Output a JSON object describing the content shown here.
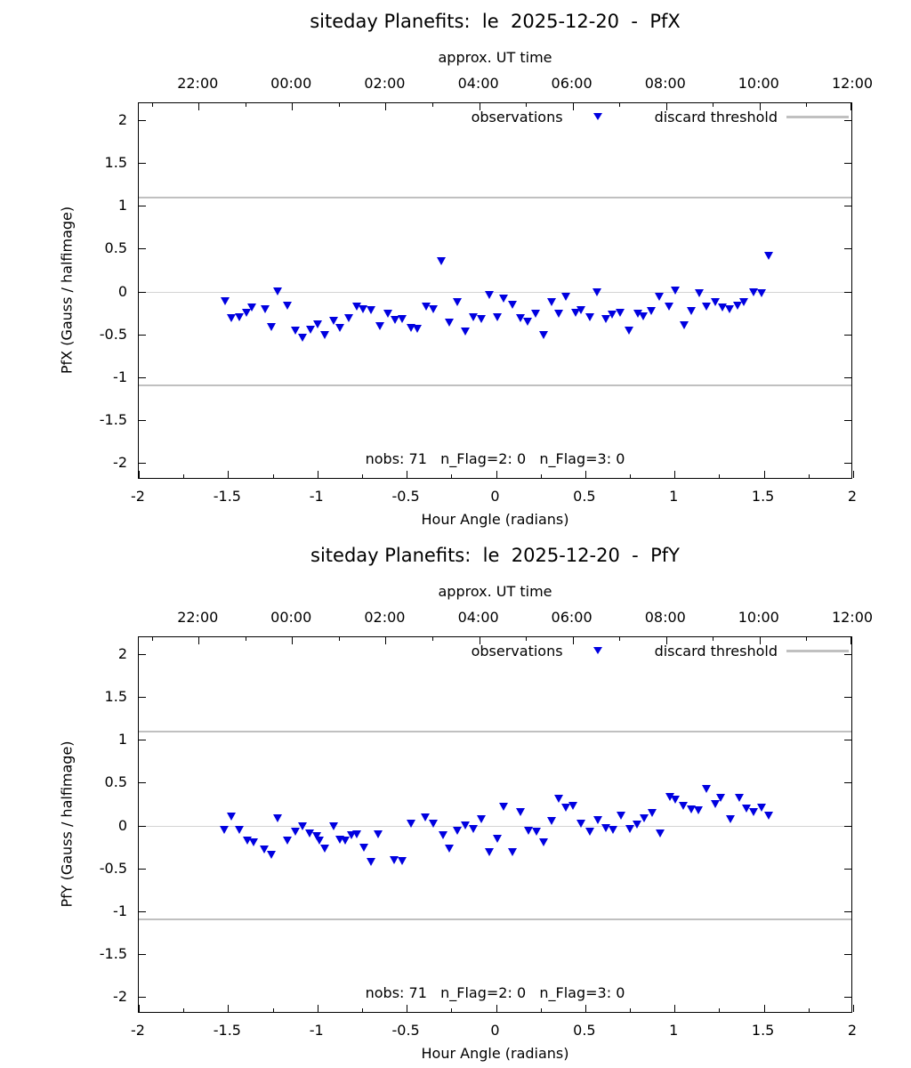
{
  "colors": {
    "marker": "#0000e0",
    "threshold_line": "#c0c0c0",
    "zero_line": "#d4d4d4",
    "axis": "#000000",
    "background": "#ffffff"
  },
  "chart_data": [
    {
      "type": "scatter",
      "title": "siteday Planefits:  le  2025-12-20  -  PfX",
      "x2label": "approx. UT time",
      "xlabel": "Hour Angle (radians)",
      "ylabel": "PfX (Gauss / halfimage)",
      "stats": "nobs: 71   n_Flag=2: 0   n_Flag=3: 0",
      "legend": {
        "observations": "observations",
        "threshold": "discard threshold"
      },
      "xlim": [
        -2,
        2
      ],
      "ylim": [
        -2.2,
        2.2
      ],
      "grid": false,
      "zero_line": 0,
      "discard_thresholds": [
        1.1,
        -1.1
      ],
      "x_ticks": [
        {
          "v": -2,
          "label": "-2"
        },
        {
          "v": -1.5,
          "label": "-1.5"
        },
        {
          "v": -1,
          "label": "-1"
        },
        {
          "v": -0.5,
          "label": "-0.5"
        },
        {
          "v": 0,
          "label": "0"
        },
        {
          "v": 0.5,
          "label": "0.5"
        },
        {
          "v": 1,
          "label": "1"
        },
        {
          "v": 1.5,
          "label": "1.5"
        },
        {
          "v": 2,
          "label": "2"
        }
      ],
      "x_minor_ticks": [
        -1.75,
        -1.25,
        -0.75,
        -0.25,
        0.25,
        0.75,
        1.25,
        1.75
      ],
      "x2_ticks": [
        {
          "v": -1.665,
          "label": "22:00"
        },
        {
          "v": -1.142,
          "label": "00:00"
        },
        {
          "v": -0.618,
          "label": "02:00"
        },
        {
          "v": -0.094,
          "label": "04:00"
        },
        {
          "v": 0.429,
          "label": "06:00"
        },
        {
          "v": 0.953,
          "label": "08:00"
        },
        {
          "v": 1.476,
          "label": "10:00"
        },
        {
          "v": 2.0,
          "label": "12:00"
        }
      ],
      "x2_minor_ticks": [
        -1.927,
        -1.403,
        -0.88,
        -0.356,
        0.167,
        0.691,
        1.215,
        1.738
      ],
      "y_ticks": [
        {
          "v": 2,
          "label": "2"
        },
        {
          "v": 1.5,
          "label": "1.5"
        },
        {
          "v": 1,
          "label": "1"
        },
        {
          "v": 0.5,
          "label": "0.5"
        },
        {
          "v": 0,
          "label": "0"
        },
        {
          "v": -0.5,
          "label": "-0.5"
        },
        {
          "v": -1,
          "label": "-1"
        },
        {
          "v": -1.5,
          "label": "-1.5"
        },
        {
          "v": -2,
          "label": "-2"
        }
      ],
      "series": [
        {
          "name": "observations",
          "marker": "triangle-down",
          "points": [
            [
              -1.515,
              -0.11
            ],
            [
              -1.477,
              -0.31
            ],
            [
              -1.436,
              -0.3
            ],
            [
              -1.394,
              -0.24
            ],
            [
              -1.364,
              -0.18
            ],
            [
              -1.29,
              -0.2
            ],
            [
              -1.256,
              -0.41
            ],
            [
              -1.219,
              0.01
            ],
            [
              -1.166,
              -0.16
            ],
            [
              -1.119,
              -0.45
            ],
            [
              -1.081,
              -0.54
            ],
            [
              -1.037,
              -0.44
            ],
            [
              -0.998,
              -0.38
            ],
            [
              -0.954,
              -0.5
            ],
            [
              -0.908,
              -0.34
            ],
            [
              -0.871,
              -0.42
            ],
            [
              -0.824,
              -0.31
            ],
            [
              -0.779,
              -0.17
            ],
            [
              -0.741,
              -0.2
            ],
            [
              -0.699,
              -0.21
            ],
            [
              -0.646,
              -0.4
            ],
            [
              -0.604,
              -0.26
            ],
            [
              -0.563,
              -0.33
            ],
            [
              -0.522,
              -0.32
            ],
            [
              -0.472,
              -0.42
            ],
            [
              -0.44,
              -0.43
            ],
            [
              -0.389,
              -0.17
            ],
            [
              -0.347,
              -0.2
            ],
            [
              -0.303,
              0.36
            ],
            [
              -0.26,
              -0.36
            ],
            [
              -0.212,
              -0.12
            ],
            [
              -0.168,
              -0.46
            ],
            [
              -0.124,
              -0.3
            ],
            [
              -0.079,
              -0.32
            ],
            [
              -0.036,
              -0.04
            ],
            [
              0.009,
              -0.3
            ],
            [
              0.047,
              -0.08
            ],
            [
              0.097,
              -0.15
            ],
            [
              0.137,
              -0.31
            ],
            [
              0.18,
              -0.35
            ],
            [
              0.225,
              -0.25
            ],
            [
              0.27,
              -0.5
            ],
            [
              0.313,
              -0.12
            ],
            [
              0.353,
              -0.25
            ],
            [
              0.396,
              -0.06
            ],
            [
              0.446,
              -0.24
            ],
            [
              0.48,
              -0.21
            ],
            [
              0.529,
              -0.3
            ],
            [
              0.569,
              -0.01
            ],
            [
              0.616,
              -0.32
            ],
            [
              0.652,
              -0.27
            ],
            [
              0.695,
              -0.24
            ],
            [
              0.745,
              -0.45
            ],
            [
              0.795,
              -0.25
            ],
            [
              0.828,
              -0.29
            ],
            [
              0.873,
              -0.22
            ],
            [
              0.918,
              -0.06
            ],
            [
              0.972,
              -0.17
            ],
            [
              1.005,
              0.02
            ],
            [
              1.055,
              -0.39
            ],
            [
              1.097,
              -0.22
            ],
            [
              1.141,
              -0.02
            ],
            [
              1.18,
              -0.17
            ],
            [
              1.229,
              -0.12
            ],
            [
              1.271,
              -0.18
            ],
            [
              1.308,
              -0.2
            ],
            [
              1.357,
              -0.16
            ],
            [
              1.391,
              -0.12
            ],
            [
              1.445,
              0.0
            ],
            [
              1.49,
              -0.02
            ],
            [
              1.528,
              0.42
            ]
          ]
        }
      ]
    },
    {
      "type": "scatter",
      "title": "siteday Planefits:  le  2025-12-20  -  PfY",
      "x2label": "approx. UT time",
      "xlabel": "Hour Angle (radians)",
      "ylabel": "PfY (Gauss / halfimage)",
      "stats": "nobs: 71   n_Flag=2: 0   n_Flag=3: 0",
      "legend": {
        "observations": "observations",
        "threshold": "discard threshold"
      },
      "xlim": [
        -2,
        2
      ],
      "ylim": [
        -2.2,
        2.2
      ],
      "grid": false,
      "zero_line": 0,
      "discard_thresholds": [
        1.1,
        -1.1
      ],
      "x_ticks": [
        {
          "v": -2,
          "label": "-2"
        },
        {
          "v": -1.5,
          "label": "-1.5"
        },
        {
          "v": -1,
          "label": "-1"
        },
        {
          "v": -0.5,
          "label": "-0.5"
        },
        {
          "v": 0,
          "label": "0"
        },
        {
          "v": 0.5,
          "label": "0.5"
        },
        {
          "v": 1,
          "label": "1"
        },
        {
          "v": 1.5,
          "label": "1.5"
        },
        {
          "v": 2,
          "label": "2"
        }
      ],
      "x_minor_ticks": [
        -1.75,
        -1.25,
        -0.75,
        -0.25,
        0.25,
        0.75,
        1.25,
        1.75
      ],
      "x2_ticks": [
        {
          "v": -1.665,
          "label": "22:00"
        },
        {
          "v": -1.142,
          "label": "00:00"
        },
        {
          "v": -0.618,
          "label": "02:00"
        },
        {
          "v": -0.094,
          "label": "04:00"
        },
        {
          "v": 0.429,
          "label": "06:00"
        },
        {
          "v": 0.953,
          "label": "08:00"
        },
        {
          "v": 1.476,
          "label": "10:00"
        },
        {
          "v": 2.0,
          "label": "12:00"
        }
      ],
      "x2_minor_ticks": [
        -1.927,
        -1.403,
        -0.88,
        -0.356,
        0.167,
        0.691,
        1.215,
        1.738
      ],
      "y_ticks": [
        {
          "v": 2,
          "label": "2"
        },
        {
          "v": 1.5,
          "label": "1.5"
        },
        {
          "v": 1,
          "label": "1"
        },
        {
          "v": 0.5,
          "label": "0.5"
        },
        {
          "v": 0,
          "label": "0"
        },
        {
          "v": -0.5,
          "label": "-0.5"
        },
        {
          "v": -1,
          "label": "-1"
        },
        {
          "v": -1.5,
          "label": "-1.5"
        },
        {
          "v": -2,
          "label": "-2"
        }
      ],
      "series": [
        {
          "name": "observations",
          "marker": "triangle-down",
          "points": [
            [
              -1.518,
              -0.05
            ],
            [
              -1.477,
              0.11
            ],
            [
              -1.436,
              -0.05
            ],
            [
              -1.389,
              -0.17
            ],
            [
              -1.356,
              -0.19
            ],
            [
              -1.294,
              -0.28
            ],
            [
              -1.256,
              -0.34
            ],
            [
              -1.219,
              0.09
            ],
            [
              -1.166,
              -0.17
            ],
            [
              -1.119,
              -0.07
            ],
            [
              -1.083,
              -0.01
            ],
            [
              -1.04,
              -0.09
            ],
            [
              -1.0,
              -0.12
            ],
            [
              -0.984,
              -0.17
            ],
            [
              -0.954,
              -0.27
            ],
            [
              -0.908,
              -0.01
            ],
            [
              -0.871,
              -0.16
            ],
            [
              -0.841,
              -0.17
            ],
            [
              -0.807,
              -0.11
            ],
            [
              -0.779,
              -0.1
            ],
            [
              -0.735,
              -0.25
            ],
            [
              -0.696,
              -0.42
            ],
            [
              -0.658,
              -0.1
            ],
            [
              -0.568,
              -0.4
            ],
            [
              -0.525,
              -0.41
            ],
            [
              -0.472,
              0.03
            ],
            [
              -0.393,
              0.1
            ],
            [
              -0.347,
              0.03
            ],
            [
              -0.293,
              -0.11
            ],
            [
              -0.26,
              -0.27
            ],
            [
              -0.212,
              -0.06
            ],
            [
              -0.168,
              0.01
            ],
            [
              -0.124,
              -0.04
            ],
            [
              -0.079,
              0.08
            ],
            [
              -0.036,
              -0.31
            ],
            [
              0.009,
              -0.15
            ],
            [
              0.047,
              0.22
            ],
            [
              0.097,
              -0.31
            ],
            [
              0.139,
              0.16
            ],
            [
              0.183,
              -0.06
            ],
            [
              0.228,
              -0.07
            ],
            [
              0.267,
              -0.19
            ],
            [
              0.312,
              0.06
            ],
            [
              0.355,
              0.32
            ],
            [
              0.395,
              0.21
            ],
            [
              0.433,
              0.23
            ],
            [
              0.478,
              0.03
            ],
            [
              0.528,
              -0.07
            ],
            [
              0.571,
              0.07
            ],
            [
              0.62,
              -0.03
            ],
            [
              0.66,
              -0.05
            ],
            [
              0.703,
              0.12
            ],
            [
              0.753,
              -0.04
            ],
            [
              0.79,
              0.02
            ],
            [
              0.831,
              0.09
            ],
            [
              0.876,
              0.15
            ],
            [
              0.923,
              -0.09
            ],
            [
              0.975,
              0.34
            ],
            [
              1.005,
              0.31
            ],
            [
              1.052,
              0.23
            ],
            [
              1.097,
              0.19
            ],
            [
              1.135,
              0.18
            ],
            [
              1.18,
              0.43
            ],
            [
              1.229,
              0.25
            ],
            [
              1.262,
              0.33
            ],
            [
              1.317,
              0.08
            ],
            [
              1.367,
              0.33
            ],
            [
              1.407,
              0.2
            ],
            [
              1.445,
              0.16
            ],
            [
              1.49,
              0.21
            ],
            [
              1.528,
              0.12
            ]
          ]
        }
      ]
    }
  ]
}
